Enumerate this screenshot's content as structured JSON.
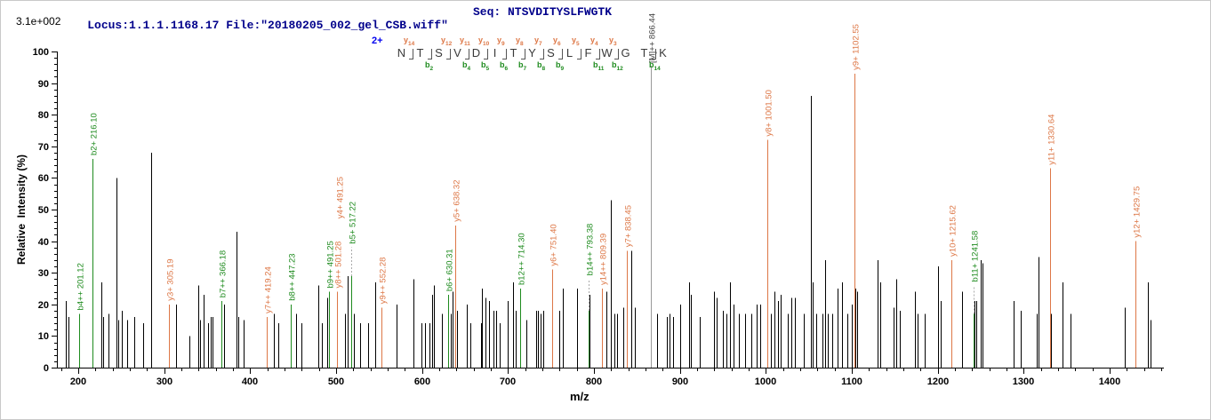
{
  "header": {
    "locus_file": "Locus:1.1.1.1168.17 File:\"20180205_002_gel_CSB.wiff\"",
    "seq": "Seq: NTSVDITYSLFWGTK"
  },
  "colors": {
    "y_ion": "#dd7746",
    "b_ion": "#1e8b1e",
    "peak": "#000000",
    "precursor_line": "#999999",
    "precursor_label": "#444444",
    "header_text": "#00008b",
    "charge_label": "#0000ee",
    "axis": "#000000"
  },
  "sequence": {
    "charge": "2+",
    "residues": [
      "N",
      "T",
      "S",
      "V",
      "D",
      "I",
      "T",
      "Y",
      "S",
      "L",
      "F",
      "W",
      "G",
      "T",
      "K"
    ],
    "gaps": [
      {
        "y": "14"
      },
      {
        "b": "2"
      },
      {
        "y": "12"
      },
      {
        "y": "11",
        "b": "4"
      },
      {
        "y": "10",
        "b": "5"
      },
      {
        "y": "9",
        "b": "6"
      },
      {
        "y": "8",
        "b": "7"
      },
      {
        "y": "7",
        "b": "8"
      },
      {
        "y": "6",
        "b": "9"
      },
      {
        "y": "5"
      },
      {
        "y": "4",
        "b": "11"
      },
      {
        "y": "3",
        "b": "12"
      },
      {},
      {
        "b": "14"
      }
    ]
  },
  "chart_data": {
    "type": "bar",
    "subtype": "ms2-centroid-spectrum",
    "xlabel": "m/z",
    "ylabel": "Relative  Intensity (%)",
    "max_intensity_label": "3.1e+002",
    "xlim": [
      175,
      1463
    ],
    "ylim": [
      0,
      100
    ],
    "x_tick_labels": [
      200,
      300,
      400,
      500,
      600,
      700,
      800,
      900,
      1000,
      1100,
      1200,
      1300,
      1400
    ],
    "x_minor_tick_step": 20,
    "y_tick_labels": [
      0,
      10,
      20,
      30,
      40,
      50,
      60,
      70,
      80,
      90,
      100
    ],
    "y_minor_tick_step": 2,
    "grid": false,
    "precursor": {
      "label": "[M]++ 866.44",
      "mz": 866.44
    },
    "annotated_peaks": [
      {
        "label": "b4++ 201.12",
        "mz": 201.12,
        "pct": 17,
        "type": "b"
      },
      {
        "label": "b2+ 216.10",
        "mz": 216.1,
        "pct": 66,
        "type": "b"
      },
      {
        "label": "y3+ 305.19",
        "mz": 305.19,
        "pct": 20,
        "type": "y"
      },
      {
        "label": "b7++ 366.18",
        "mz": 366.18,
        "pct": 21,
        "type": "b"
      },
      {
        "label": "y7++ 419.24",
        "mz": 419.24,
        "pct": 16,
        "type": "y"
      },
      {
        "label": "b8++ 447.23",
        "mz": 447.23,
        "pct": 20,
        "type": "b"
      },
      {
        "label": "b9++ 491.25",
        "mz": 491.25,
        "pct": 24,
        "type": "b"
      },
      {
        "label": "y4+ 491.25",
        "mz": 491.25,
        "pct": 21,
        "type": "y",
        "label_only": true,
        "label_dx": 11,
        "label_from_pct": 46
      },
      {
        "label": "y8++ 501.28",
        "mz": 501.28,
        "pct": 24,
        "type": "y"
      },
      {
        "label": "b5+ 517.22",
        "mz": 517.22,
        "pct": 29,
        "type": "b",
        "label_from_pct": 38
      },
      {
        "label": "y9++ 552.28",
        "mz": 552.28,
        "pct": 19,
        "type": "y"
      },
      {
        "label": "b6+ 630.31",
        "mz": 630.31,
        "pct": 23,
        "type": "b"
      },
      {
        "label": "y5+ 638.32",
        "mz": 638.32,
        "pct": 45,
        "type": "y"
      },
      {
        "label": "b12++ 714.30",
        "mz": 714.3,
        "pct": 25,
        "type": "b"
      },
      {
        "label": "y6+ 751.40",
        "mz": 751.4,
        "pct": 31,
        "type": "y"
      },
      {
        "label": "b14++ 793.38",
        "mz": 793.38,
        "pct": 18,
        "type": "b",
        "label_from_pct": 28
      },
      {
        "label": "y14++ 809.39",
        "mz": 809.39,
        "pct": 25,
        "type": "y"
      },
      {
        "label": "y7+ 838.45",
        "mz": 838.45,
        "pct": 37,
        "type": "y"
      },
      {
        "label": "y8+ 1001.50",
        "mz": 1001.5,
        "pct": 72,
        "type": "y"
      },
      {
        "label": "y9+ 1102.55",
        "mz": 1102.55,
        "pct": 93,
        "type": "y"
      },
      {
        "label": "y10+ 1215.62",
        "mz": 1215.62,
        "pct": 34,
        "type": "y"
      },
      {
        "label": "b11+ 1241.58",
        "mz": 1241.58,
        "pct": 17,
        "type": "b",
        "label_from_pct": 26
      },
      {
        "label": "y11+ 1330.64",
        "mz": 1330.64,
        "pct": 63,
        "type": "y"
      },
      {
        "label": "y12+ 1429.75",
        "mz": 1429.75,
        "pct": 40,
        "type": "y"
      }
    ],
    "peaks": [
      [
        185,
        21
      ],
      [
        188,
        16
      ],
      [
        227,
        27
      ],
      [
        229,
        16
      ],
      [
        235,
        17
      ],
      [
        244,
        60
      ],
      [
        246,
        15
      ],
      [
        251,
        18
      ],
      [
        257,
        15
      ],
      [
        265,
        16
      ],
      [
        275,
        14
      ],
      [
        285,
        68
      ],
      [
        314,
        20
      ],
      [
        329,
        10
      ],
      [
        340,
        26
      ],
      [
        342,
        15
      ],
      [
        346,
        23
      ],
      [
        351,
        14
      ],
      [
        354,
        16
      ],
      [
        356,
        16
      ],
      [
        369,
        20
      ],
      [
        384,
        43
      ],
      [
        386,
        16
      ],
      [
        392,
        15
      ],
      [
        427,
        17
      ],
      [
        433,
        14
      ],
      [
        453,
        17
      ],
      [
        460,
        14
      ],
      [
        479,
        26
      ],
      [
        483,
        14
      ],
      [
        490,
        22
      ],
      [
        492,
        20
      ],
      [
        510,
        17
      ],
      [
        513,
        29
      ],
      [
        521,
        17
      ],
      [
        528,
        14
      ],
      [
        537,
        14
      ],
      [
        545,
        27
      ],
      [
        570,
        20
      ],
      [
        590,
        28
      ],
      [
        599,
        14
      ],
      [
        603,
        14
      ],
      [
        608,
        14
      ],
      [
        612,
        23
      ],
      [
        614,
        26
      ],
      [
        623,
        17
      ],
      [
        633,
        17
      ],
      [
        635,
        24
      ],
      [
        641,
        18
      ],
      [
        652,
        20
      ],
      [
        656,
        14
      ],
      [
        668,
        14
      ],
      [
        670,
        25
      ],
      [
        674,
        22
      ],
      [
        678,
        21
      ],
      [
        683,
        18
      ],
      [
        686,
        18
      ],
      [
        690,
        14
      ],
      [
        699,
        21
      ],
      [
        706,
        27
      ],
      [
        709,
        18
      ],
      [
        721,
        15
      ],
      [
        733,
        18
      ],
      [
        735,
        18
      ],
      [
        738,
        17
      ],
      [
        741,
        18
      ],
      [
        760,
        18
      ],
      [
        764,
        25
      ],
      [
        780,
        25
      ],
      [
        795,
        23
      ],
      [
        814,
        24
      ],
      [
        820,
        53
      ],
      [
        824,
        17
      ],
      [
        827,
        17
      ],
      [
        834,
        19
      ],
      [
        843,
        37
      ],
      [
        847,
        19
      ],
      [
        873,
        17
      ],
      [
        885,
        16
      ],
      [
        888,
        17
      ],
      [
        892,
        16
      ],
      [
        900,
        20
      ],
      [
        911,
        27
      ],
      [
        913,
        23
      ],
      [
        923,
        16
      ],
      [
        940,
        24
      ],
      [
        943,
        22
      ],
      [
        950,
        18
      ],
      [
        954,
        17
      ],
      [
        958,
        27
      ],
      [
        962,
        20
      ],
      [
        968,
        17
      ],
      [
        976,
        17
      ],
      [
        983,
        17
      ],
      [
        989,
        20
      ],
      [
        993,
        20
      ],
      [
        1006,
        17
      ],
      [
        1010,
        24
      ],
      [
        1014,
        21
      ],
      [
        1017,
        23
      ],
      [
        1025,
        17
      ],
      [
        1030,
        22
      ],
      [
        1034,
        22
      ],
      [
        1044,
        17
      ],
      [
        1052,
        86
      ],
      [
        1054,
        27
      ],
      [
        1058,
        17
      ],
      [
        1066,
        17
      ],
      [
        1069,
        34
      ],
      [
        1072,
        17
      ],
      [
        1077,
        17
      ],
      [
        1083,
        25
      ],
      [
        1088,
        27
      ],
      [
        1095,
        17
      ],
      [
        1100,
        20
      ],
      [
        1104,
        25
      ],
      [
        1106,
        24
      ],
      [
        1130,
        34
      ],
      [
        1133,
        27
      ],
      [
        1148,
        19
      ],
      [
        1152,
        28
      ],
      [
        1156,
        18
      ],
      [
        1173,
        24
      ],
      [
        1176,
        17
      ],
      [
        1185,
        17
      ],
      [
        1200,
        32
      ],
      [
        1203,
        21
      ],
      [
        1228,
        24
      ],
      [
        1243,
        21
      ],
      [
        1245,
        21
      ],
      [
        1250,
        34
      ],
      [
        1252,
        33
      ],
      [
        1288,
        21
      ],
      [
        1296,
        18
      ],
      [
        1315,
        17
      ],
      [
        1317,
        35
      ],
      [
        1332,
        17
      ],
      [
        1345,
        27
      ],
      [
        1354,
        17
      ],
      [
        1417,
        19
      ],
      [
        1444,
        27
      ],
      [
        1447,
        15
      ]
    ]
  }
}
